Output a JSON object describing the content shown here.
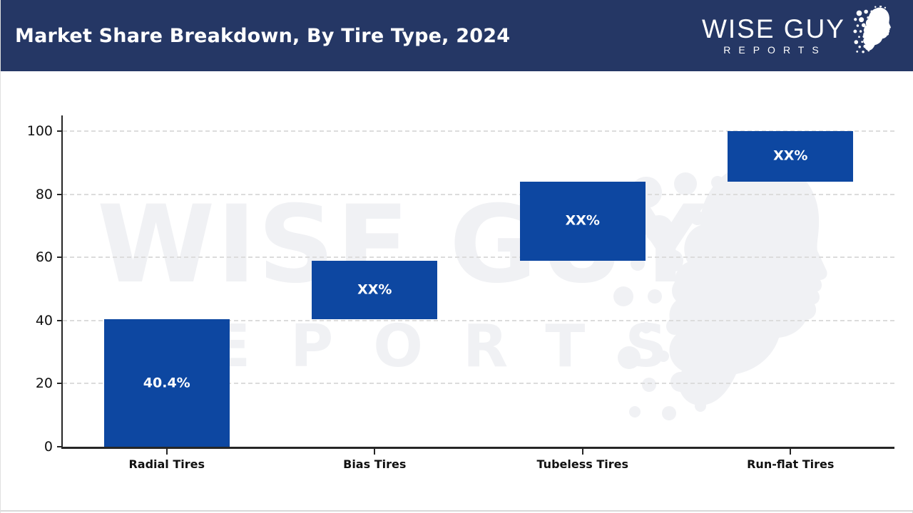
{
  "header": {
    "title": "Market Share Breakdown, By Tire Type, 2024",
    "logo": {
      "brand_line1": "WISE GUY",
      "brand_line2": "REPORTS"
    }
  },
  "watermark": {
    "line1": "WISE GUY",
    "line2": "REPORTS"
  },
  "chart_data": {
    "type": "bar",
    "variant": "waterfall",
    "title": "Market Share Breakdown, By Tire Type, 2024",
    "categories": [
      "Radial Tires",
      "Bias Tires",
      "Tubeless Tires",
      "Run-flat Tires"
    ],
    "segments": [
      {
        "category": "Radial Tires",
        "start": 0,
        "end": 40.4,
        "value_label": "40.4%"
      },
      {
        "category": "Bias Tires",
        "start": 40.4,
        "end": 59,
        "value_label": "XX%"
      },
      {
        "category": "Tubeless Tires",
        "start": 59,
        "end": 84,
        "value_label": "XX%"
      },
      {
        "category": "Run-flat Tires",
        "start": 84,
        "end": 100,
        "value_label": "XX%"
      }
    ],
    "xlabel": "",
    "ylabel": "",
    "yticks": [
      0,
      20,
      40,
      60,
      80,
      100
    ],
    "ylim": [
      0,
      105
    ],
    "grid": "horizontal-dashed",
    "legend": "none"
  },
  "colors": {
    "header_bg": "#253765",
    "bar": "#0d47a1",
    "bar_label": "#ffffff",
    "grid": "#dcdcdc",
    "axis": "#262626",
    "watermark": "#f0f1f4",
    "footer_line": "#d9d9d9"
  }
}
